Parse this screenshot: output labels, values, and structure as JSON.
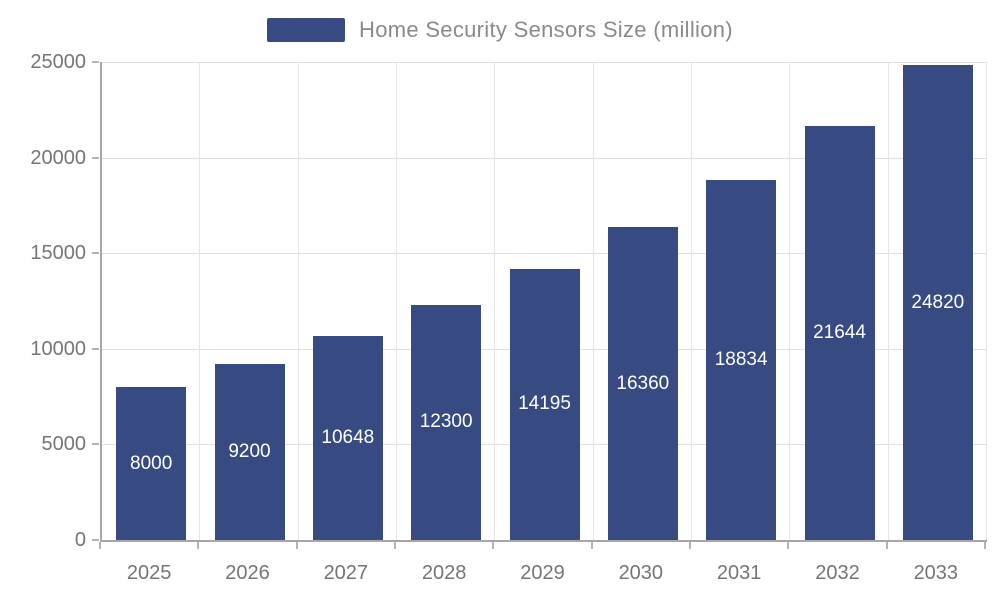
{
  "legend": {
    "items": [
      {
        "label": "Home Security Sensors Size (million)",
        "color": "#374a82"
      }
    ],
    "position": "top-center"
  },
  "chart_data": {
    "type": "bar",
    "title": "Home Security Sensors Size (million)",
    "categories": [
      "2025",
      "2026",
      "2027",
      "2028",
      "2029",
      "2030",
      "2031",
      "2032",
      "2033"
    ],
    "values": [
      8000,
      9200,
      10648,
      12300,
      14195,
      16360,
      18834,
      21644,
      24820
    ],
    "series": [
      {
        "name": "Home Security Sensors Size (million)",
        "values": [
          8000,
          9200,
          10648,
          12300,
          14195,
          16360,
          18834,
          21644,
          24820
        ]
      }
    ],
    "xlabel": "",
    "ylabel": "",
    "ylim": [
      0,
      25000
    ],
    "yticks": [
      0,
      5000,
      10000,
      15000,
      20000,
      25000
    ],
    "grid": true,
    "legend_position": "top",
    "bar_color": "#374a82",
    "value_label_color": "#ffffff",
    "value_label_position": "inside-middle"
  },
  "colors": {
    "background": "#ffffff",
    "bar": "#374a82",
    "grid_line": "#e0e0e0",
    "axis_line": "#a6a6a6",
    "tick_label": "#757575",
    "legend_text": "#8a8a8a",
    "value_label": "#ffffff"
  }
}
